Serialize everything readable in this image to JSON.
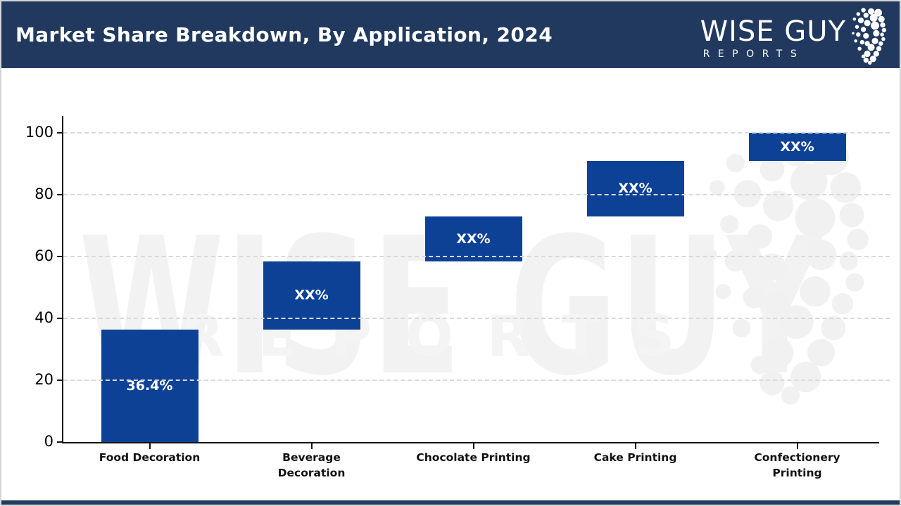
{
  "page": {
    "bg": "#FFFFFF",
    "border_color": "#D6D6D6"
  },
  "header": {
    "title": "Market Share Breakdown, By Application, 2024",
    "bg_color": "#21395F",
    "logo": {
      "line1": "WISE GUY",
      "line2": "REPORTS",
      "head_icon": "dotted-head-profile"
    }
  },
  "footer": {
    "bg_color": "#21395F"
  },
  "watermark": {
    "line1": "WISE GUY",
    "line2": "REPORTS"
  },
  "chart_data": {
    "type": "bar",
    "subtype": "waterfall",
    "title": "Market Share Breakdown, By Application, 2024",
    "xlabel": "",
    "ylabel": "",
    "ylim": [
      0,
      100
    ],
    "yticks": [
      0,
      20,
      40,
      60,
      80,
      100
    ],
    "grid": "horizontal-dashed",
    "legend": "none",
    "bar_color": "#0D4196",
    "bar_label_color": "#FFFFFF",
    "axis_color": "#141414",
    "grid_color": "#D9D9D9",
    "categories": [
      "Food Decoration",
      "Beverage Decoration",
      "Chocolate Printing",
      "Cake Printing",
      "Confectionery Printing"
    ],
    "categories_display": [
      "Food Decoration",
      "Beverage\nDecoration",
      "Chocolate Printing",
      "Cake Printing",
      "Confectionery\nPrinting"
    ],
    "bars": [
      {
        "category": "Food Decoration",
        "start": 0,
        "end": 36.4,
        "value": 36.4,
        "label": "36.4%"
      },
      {
        "category": "Beverage Decoration",
        "start": 36.4,
        "end": 58.4,
        "value": 22.0,
        "label": "XX%"
      },
      {
        "category": "Chocolate Printing",
        "start": 58.4,
        "end": 73.0,
        "value": 14.6,
        "label": "XX%"
      },
      {
        "category": "Cake Printing",
        "start": 73.0,
        "end": 91.0,
        "value": 18.0,
        "label": "XX%"
      },
      {
        "category": "Confectionery Printing",
        "start": 91.0,
        "end": 100.0,
        "value": 9.0,
        "label": "XX%"
      }
    ]
  }
}
